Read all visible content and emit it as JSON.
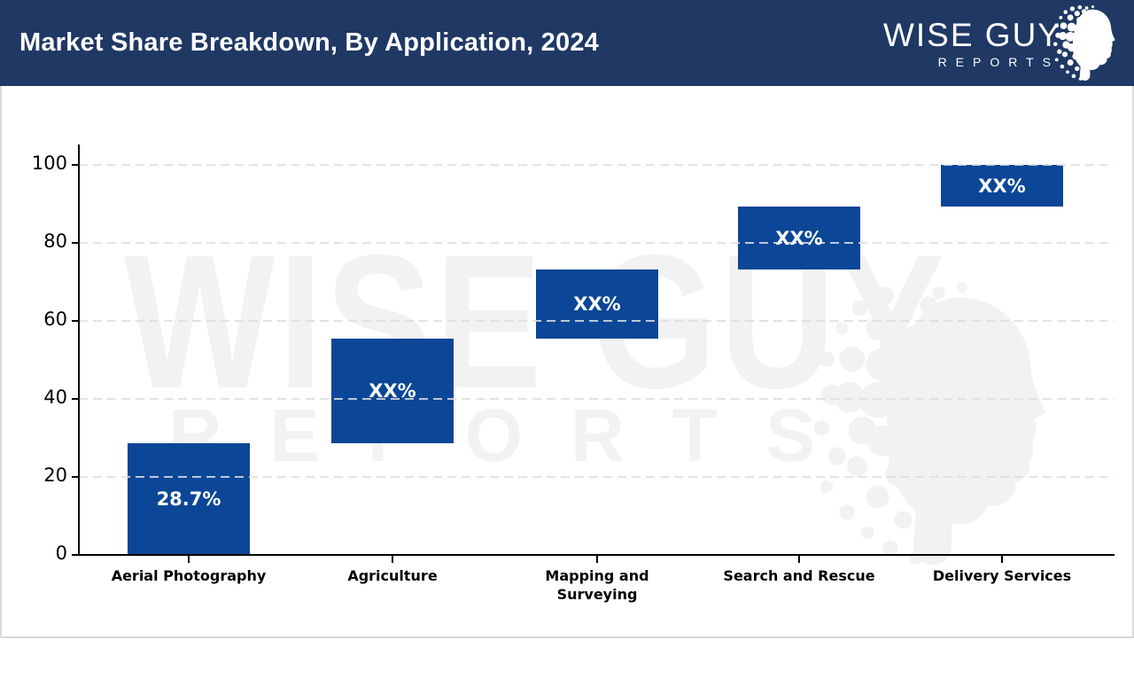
{
  "header": {
    "title": "Market Share Breakdown, By Application, 2024",
    "logo": {
      "wordmark": "WISE GUY",
      "subtext": "REPORTS"
    }
  },
  "watermark": {
    "wordmark": "WISE GUY",
    "subtext": "REPORTS"
  },
  "colors": {
    "header_bg": "#1F3864",
    "bar": "#0B4697",
    "grid": "#DEDEDE",
    "axis": "#000000",
    "value_label": "#FFFFFF",
    "watermark": "#F2F2F2"
  },
  "chart_data": {
    "type": "bar",
    "variant": "waterfall",
    "title": "Market Share Breakdown, By Application, 2024",
    "unit": "%",
    "categories": [
      "Aerial Photography",
      "Agriculture",
      "Mapping and Surveying",
      "Search and Rescue",
      "Delivery Services"
    ],
    "segments": [
      {
        "category": "Aerial Photography",
        "category_display": "Aerial Photography",
        "start": 0,
        "end": 28.7,
        "label": "28.7%"
      },
      {
        "category": "Agriculture",
        "category_display": "Agriculture",
        "start": 28.7,
        "end": 55.5,
        "label": "XX%"
      },
      {
        "category": "Mapping and Surveying",
        "category_display": "Mapping and\nSurveying",
        "start": 55.5,
        "end": 73.2,
        "label": "XX%"
      },
      {
        "category": "Search and Rescue",
        "category_display": "Search and Rescue",
        "start": 73.2,
        "end": 89.3,
        "label": "XX%"
      },
      {
        "category": "Delivery Services",
        "category_display": "Delivery Services",
        "start": 89.3,
        "end": 100,
        "label": "XX%"
      }
    ],
    "yticks": [
      0,
      20,
      40,
      60,
      80,
      100
    ],
    "ylim": [
      0,
      105
    ],
    "xlabel": "",
    "ylabel": "",
    "grid": {
      "horizontal": true,
      "style": "dashed"
    },
    "legend": null
  }
}
